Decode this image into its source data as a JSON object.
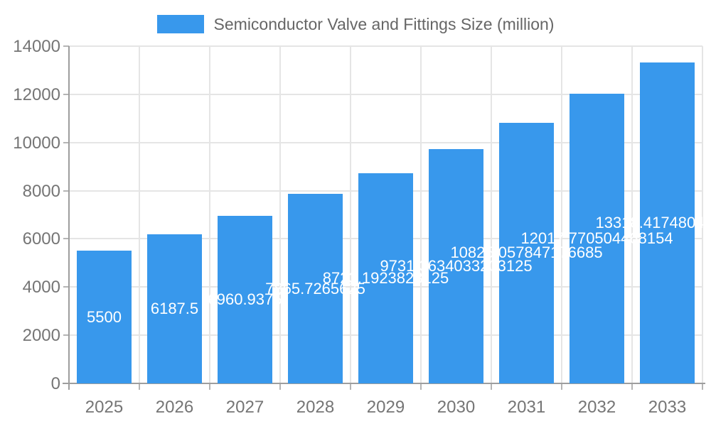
{
  "legend": {
    "label": "Semiconductor Valve and Fittings Size (million)"
  },
  "chart_data": {
    "type": "bar",
    "title": "Semiconductor Valve and Fittings Size (million)",
    "categories": [
      "2025",
      "2026",
      "2027",
      "2028",
      "2029",
      "2030",
      "2031",
      "2032",
      "2033"
    ],
    "values": [
      5500,
      6187.5,
      6960.9375,
      7865.7265625,
      8723.1923828125,
      9731.363403320312,
      10825.057847176686,
      12017.770504468153,
      13318.41748046875
    ],
    "value_labels": [
      "5500",
      "6187.5",
      "6960.9375",
      "7865.7265625",
      "8723.1923828125",
      "9731.3634033203125",
      "10825.057847176685",
      "12017.770504468154",
      "13318.41748046875"
    ],
    "xlabel": "",
    "ylabel": "",
    "ylim": [
      0,
      14000
    ],
    "y_ticks": [
      0,
      2000,
      4000,
      6000,
      8000,
      10000,
      12000,
      14000
    ],
    "grid": true,
    "legend_position": "top-center",
    "colors": {
      "bar": "#3898EC",
      "grid": "#E5E5E5",
      "axis": "#9E9E9E",
      "tick_mark": "#B5B5B5",
      "tick_label": "#757575",
      "legend_text": "#666666",
      "value_label": "#FFFFFF",
      "background": "#FFFFFF"
    }
  }
}
